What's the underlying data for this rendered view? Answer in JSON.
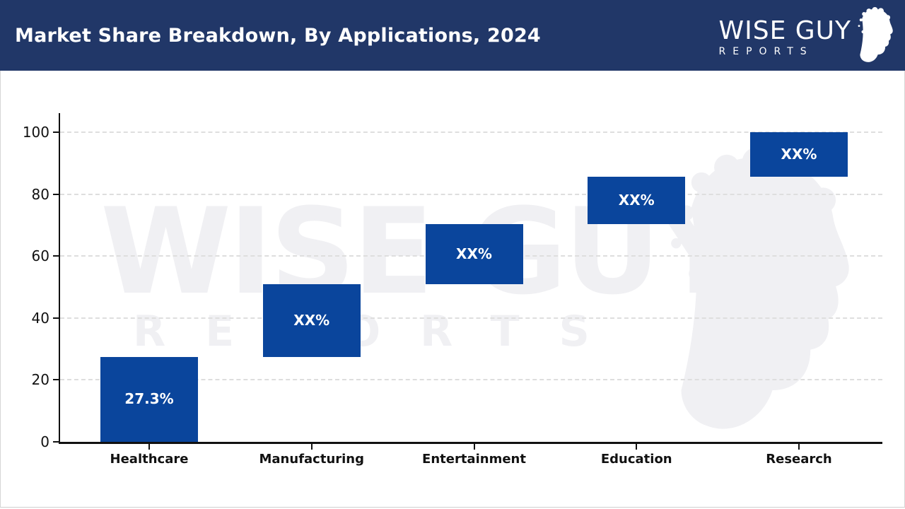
{
  "header": {
    "title": "Market Share Breakdown, By Applications, 2024",
    "logo": {
      "line1": "WISE GUY",
      "line2": "REPORTS"
    }
  },
  "watermark": {
    "line1": "WISE GUY",
    "line2": "REPORTS"
  },
  "colors": {
    "header_bg": "#213768",
    "bar": "#0a459c",
    "grid": "#dedede",
    "axis": "#111111",
    "bar_label": "#ffffff",
    "watermark": "#f0f0f3",
    "frame_border": "#d6d6d6"
  },
  "chart_data": {
    "type": "bar",
    "variant": "waterfall",
    "title": "Market Share Breakdown, By Applications, 2024",
    "categories": [
      "Healthcare",
      "Manufacturing",
      "Entertainment",
      "Education",
      "Research"
    ],
    "segments": [
      [
        0,
        27.3
      ],
      [
        27.3,
        50.8
      ],
      [
        50.8,
        70.4
      ],
      [
        70.4,
        85.7
      ],
      [
        85.7,
        100
      ]
    ],
    "values_pct": [
      27.3,
      23.5,
      19.6,
      15.3,
      14.3
    ],
    "bar_labels": [
      "27.3%",
      "XX%",
      "XX%",
      "XX%",
      "XX%"
    ],
    "yticks": [
      0,
      20,
      40,
      60,
      80,
      100
    ],
    "ytick_labels": [
      "0",
      "20",
      "40",
      "60",
      "80",
      "100"
    ],
    "ylim": [
      0,
      106
    ],
    "xlabel": "",
    "ylabel": "",
    "grid": "horizontal-dashed",
    "legend": "none",
    "bar_color": "#0a459c",
    "label_color": "#ffffff"
  }
}
